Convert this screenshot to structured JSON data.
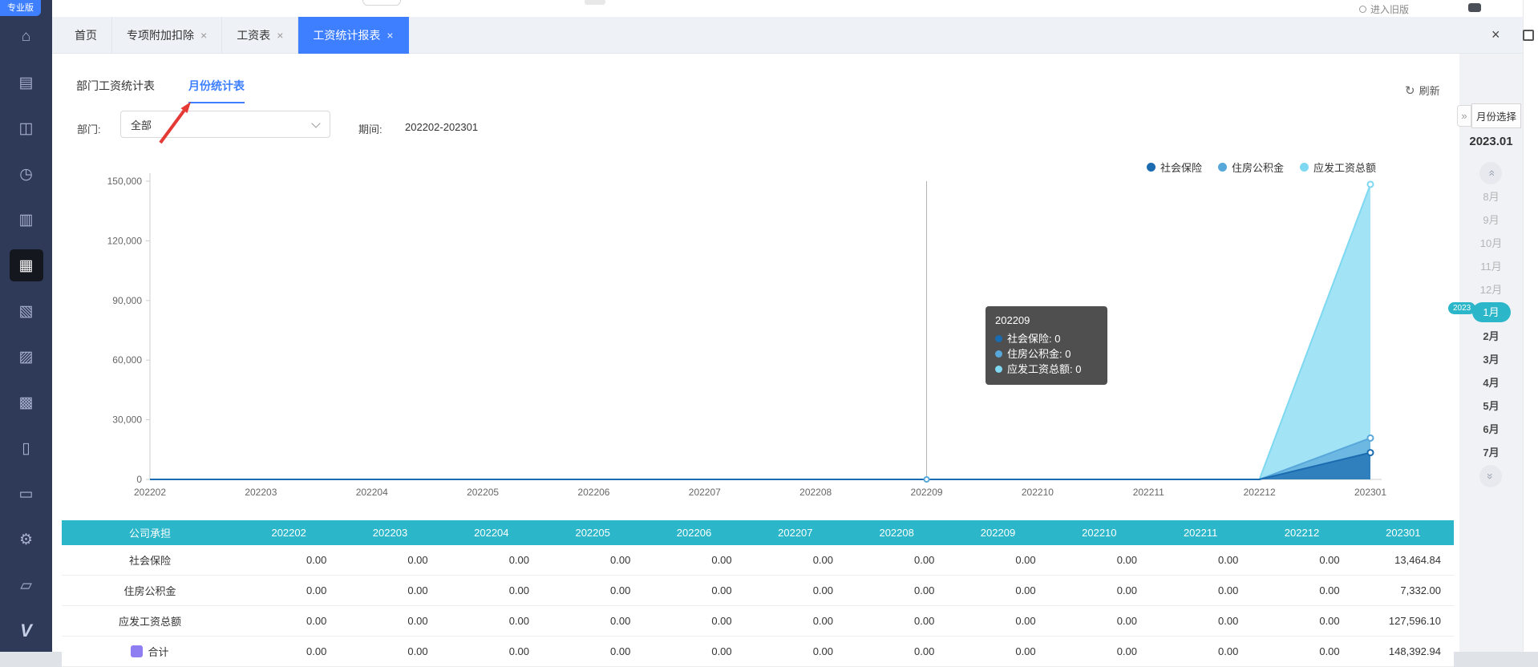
{
  "sidebar": {
    "badge": "专业版",
    "items": [
      {
        "name": "home",
        "glyph": "⌂"
      },
      {
        "name": "vouchers",
        "glyph": "▤"
      },
      {
        "name": "reports",
        "glyph": "◫"
      },
      {
        "name": "funds",
        "glyph": "◷"
      },
      {
        "name": "invoices",
        "glyph": "▥"
      },
      {
        "name": "salary-report",
        "glyph": "▦",
        "active": true
      },
      {
        "name": "fixed-assets",
        "glyph": "▧"
      },
      {
        "name": "inventory",
        "glyph": "▨"
      },
      {
        "name": "cash",
        "glyph": "▩"
      },
      {
        "name": "mobile-app",
        "glyph": "▯"
      },
      {
        "name": "contacts",
        "glyph": "▭"
      },
      {
        "name": "settings",
        "glyph": "⚙"
      },
      {
        "name": "checkout",
        "glyph": "▱"
      },
      {
        "name": "brand-logo",
        "glyph": "V",
        "brand": true
      }
    ]
  },
  "header": {
    "old_version": "进入旧版"
  },
  "tabs": {
    "close_all_glyph": "×",
    "items": [
      {
        "label": "首页"
      },
      {
        "label": "专项附加扣除",
        "closable": true
      },
      {
        "label": "工资表",
        "closable": true
      },
      {
        "label": "工资统计报表",
        "closable": true,
        "active": true
      }
    ]
  },
  "subtabs": [
    {
      "label": "部门工资统计表"
    },
    {
      "label": "月份统计表",
      "active": true
    }
  ],
  "refresh": {
    "icon": "↻",
    "label": "刷新"
  },
  "filters": {
    "dept_label": "部门:",
    "dept_value": "全部",
    "period_label": "期间:",
    "period_value": "202202-202301"
  },
  "chart_data": {
    "type": "area",
    "stacked": true,
    "categories": [
      "202202",
      "202203",
      "202204",
      "202205",
      "202206",
      "202207",
      "202208",
      "202209",
      "202210",
      "202211",
      "202212",
      "202301"
    ],
    "series": [
      {
        "name": "社会保险",
        "color": "#1a6bb0",
        "values": [
          0,
          0,
          0,
          0,
          0,
          0,
          0,
          0,
          0,
          0,
          0,
          13464.84
        ]
      },
      {
        "name": "住房公积金",
        "color": "#58a7da",
        "values": [
          0,
          0,
          0,
          0,
          0,
          0,
          0,
          0,
          0,
          0,
          0,
          7332.0
        ]
      },
      {
        "name": "应发工资总额",
        "color": "#7fd8f2",
        "values": [
          0,
          0,
          0,
          0,
          0,
          0,
          0,
          0,
          0,
          0,
          0,
          127596.1
        ]
      }
    ],
    "ylim": [
      0,
      150000
    ],
    "y_ticks": [
      0,
      30000,
      60000,
      90000,
      120000,
      150000
    ],
    "grid": false,
    "legend_position": "top-right",
    "hover_category": "202209"
  },
  "tooltip": {
    "title": "202209",
    "items": [
      {
        "label": "社会保险",
        "value": "0"
      },
      {
        "label": "住房公积金",
        "value": "0"
      },
      {
        "label": "应发工资总额",
        "value": "0"
      }
    ]
  },
  "table": {
    "header": [
      "公司承担",
      "202202",
      "202203",
      "202204",
      "202205",
      "202206",
      "202207",
      "202208",
      "202209",
      "202210",
      "202211",
      "202212",
      "202301"
    ],
    "rows": [
      {
        "label": "社会保险",
        "values": [
          "0.00",
          "0.00",
          "0.00",
          "0.00",
          "0.00",
          "0.00",
          "0.00",
          "0.00",
          "0.00",
          "0.00",
          "0.00",
          "13,464.84"
        ]
      },
      {
        "label": "住房公积金",
        "values": [
          "0.00",
          "0.00",
          "0.00",
          "0.00",
          "0.00",
          "0.00",
          "0.00",
          "0.00",
          "0.00",
          "0.00",
          "0.00",
          "7,332.00"
        ]
      },
      {
        "label": "应发工资总额",
        "values": [
          "0.00",
          "0.00",
          "0.00",
          "0.00",
          "0.00",
          "0.00",
          "0.00",
          "0.00",
          "0.00",
          "0.00",
          "0.00",
          "127,596.10"
        ]
      },
      {
        "label": "合计",
        "icon": true,
        "values": [
          "0.00",
          "0.00",
          "0.00",
          "0.00",
          "0.00",
          "0.00",
          "0.00",
          "0.00",
          "0.00",
          "0.00",
          "0.00",
          "148,392.94"
        ]
      }
    ]
  },
  "month_panel": {
    "collapse_glyph": "»",
    "title": "月份选择",
    "current": "2023.01",
    "year_badge": "2023",
    "scroll_glyph": "»",
    "months": [
      {
        "label": "8月",
        "dim": true
      },
      {
        "label": "9月",
        "dim": true
      },
      {
        "label": "10月",
        "dim": true
      },
      {
        "label": "11月",
        "dim": true
      },
      {
        "label": "12月",
        "dim": true
      },
      {
        "label": "1月",
        "active": true
      },
      {
        "label": "2月"
      },
      {
        "label": "3月"
      },
      {
        "label": "4月"
      },
      {
        "label": "5月"
      },
      {
        "label": "6月"
      },
      {
        "label": "7月"
      }
    ]
  }
}
